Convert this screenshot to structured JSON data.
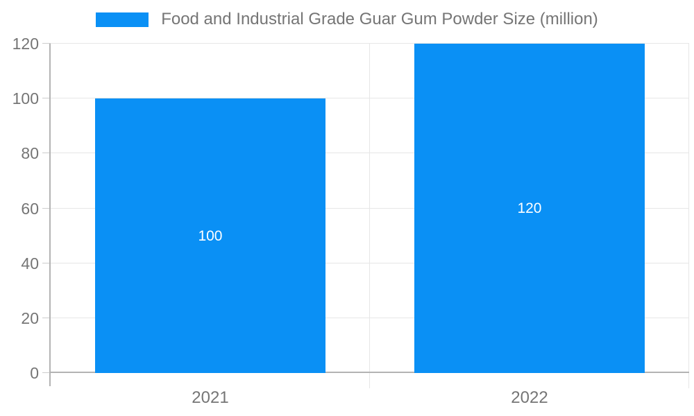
{
  "chart_data": {
    "type": "bar",
    "title": "Food and Industrial Grade Guar Gum Powder Size (million)",
    "categories": [
      "2021",
      "2022"
    ],
    "values": [
      100,
      120
    ],
    "data_labels": [
      "100",
      "120"
    ],
    "xlabel": "",
    "ylabel": "",
    "ylim": [
      0,
      120
    ],
    "yticks": [
      0,
      20,
      40,
      60,
      80,
      100,
      120
    ],
    "grid": true,
    "legend_position": "top-center",
    "bar_color": "#0a90f5",
    "label_color": "#ffffff",
    "axis_text_color": "#757575",
    "grid_color": "#e6e6e6",
    "tick_color": "#cccccc",
    "axis_line_color": "#b3b3b3",
    "background_color": "#ffffff"
  }
}
